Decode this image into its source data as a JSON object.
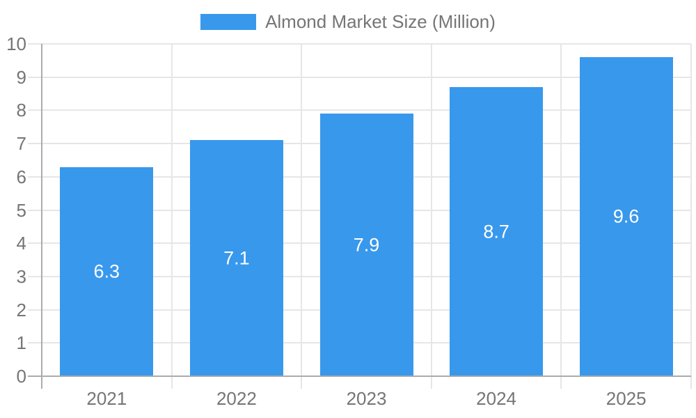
{
  "chart_data": {
    "type": "bar",
    "title": "Almond Market Size (Million)",
    "categories": [
      "2021",
      "2022",
      "2023",
      "2024",
      "2025"
    ],
    "values": [
      6.3,
      7.1,
      7.9,
      8.7,
      9.6
    ],
    "series": [
      {
        "name": "Almond Market Size (Million)",
        "values": [
          6.3,
          7.1,
          7.9,
          8.7,
          9.6
        ]
      }
    ],
    "value_labels": [
      "6.3",
      "7.1",
      "7.9",
      "8.7",
      "9.6"
    ],
    "xlabel": "",
    "ylabel": "",
    "ylim": [
      0,
      10
    ],
    "yticks": [
      0,
      1,
      2,
      3,
      4,
      5,
      6,
      7,
      8,
      9,
      10
    ],
    "ytick_labels": [
      "0",
      "1",
      "2",
      "3",
      "4",
      "5",
      "6",
      "7",
      "8",
      "9",
      "10"
    ],
    "grid": true,
    "legend_position": "top",
    "colors": {
      "bar": "#3898ec",
      "grid_line": "#e6e6e6",
      "axis_line": "#ababab",
      "tick_text": "#757575",
      "legend_text": "#757575",
      "value_label_text": "#ffffff",
      "background": "#ffffff"
    }
  }
}
